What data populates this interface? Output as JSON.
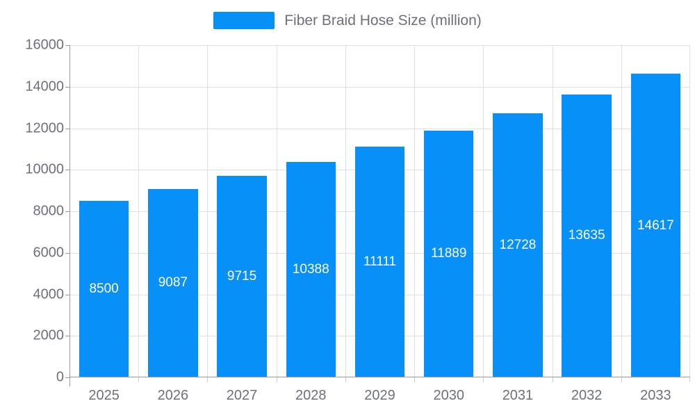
{
  "legend": {
    "label": "Fiber Braid Hose Size (million)"
  },
  "colors": {
    "bar": "#0791f8",
    "value_label": "#ffffff",
    "axis_label": "#6e7079",
    "legend_text": "#6e7079",
    "axis_line": "#999999",
    "gridline": "#e0e0e0",
    "category_tick": "#cccccc",
    "background": "#ffffff"
  },
  "chart_data": {
    "type": "bar",
    "title": "Fiber Braid Hose Size (million)",
    "categories": [
      "2025",
      "2026",
      "2027",
      "2028",
      "2029",
      "2030",
      "2031",
      "2032",
      "2033"
    ],
    "series": [
      {
        "name": "Fiber Braid Hose Size (million)",
        "values": [
          8500,
          9087,
          9715,
          10388,
          11111,
          11889,
          12728,
          13635,
          14617
        ]
      }
    ],
    "xlabel": "",
    "ylabel": "",
    "ylim": [
      0,
      16000
    ],
    "ytick_step": 2000,
    "ytick_labels": [
      "0",
      "2000",
      "4000",
      "6000",
      "8000",
      "10000",
      "12000",
      "14000",
      "16000"
    ],
    "grid": true,
    "legend_position": "top-center",
    "value_labels": "inside-center",
    "bar_width_fraction": 0.72
  }
}
